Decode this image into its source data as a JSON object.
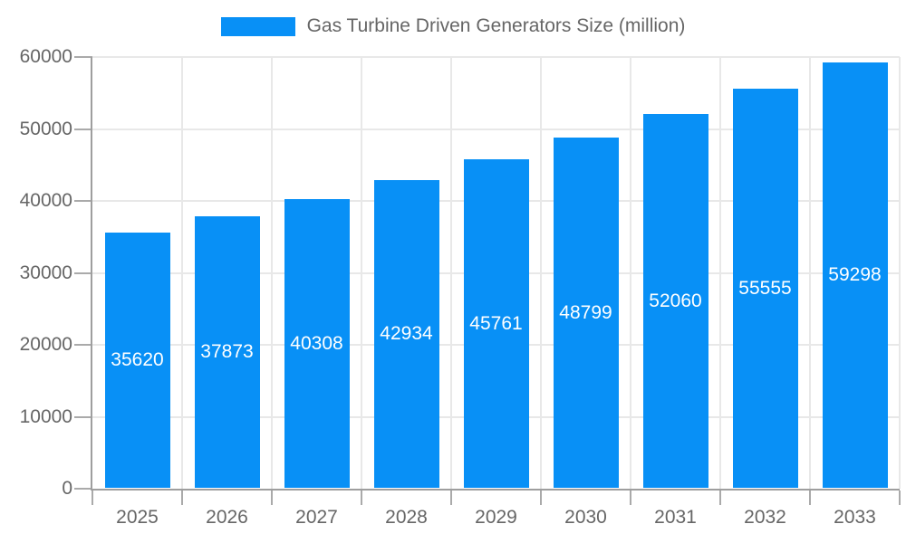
{
  "chart_data": {
    "type": "bar",
    "title": "Gas Turbine Driven Generators Size (million)",
    "legend_label": "Gas Turbine Driven Generators Size (million)",
    "legend_position": "top",
    "categories": [
      "2025",
      "2026",
      "2027",
      "2028",
      "2029",
      "2030",
      "2031",
      "2032",
      "2033"
    ],
    "values": [
      35620,
      37873,
      40308,
      42934,
      45761,
      48799,
      52060,
      55555,
      59298
    ],
    "xlabel": "",
    "ylabel": "",
    "ylim": [
      0,
      60000
    ],
    "ytick_step": 10000,
    "yticks": [
      0,
      10000,
      20000,
      30000,
      40000,
      50000,
      60000
    ],
    "grid": true,
    "data_labels": "inside-center"
  },
  "colors": {
    "bar": "#0890f6",
    "grid": "#e8e8e8",
    "axis": "#9e9e9e",
    "tick": "#aaaaaa",
    "tick_label": "#666666",
    "data_label": "#ffffff",
    "background": "#ffffff"
  }
}
